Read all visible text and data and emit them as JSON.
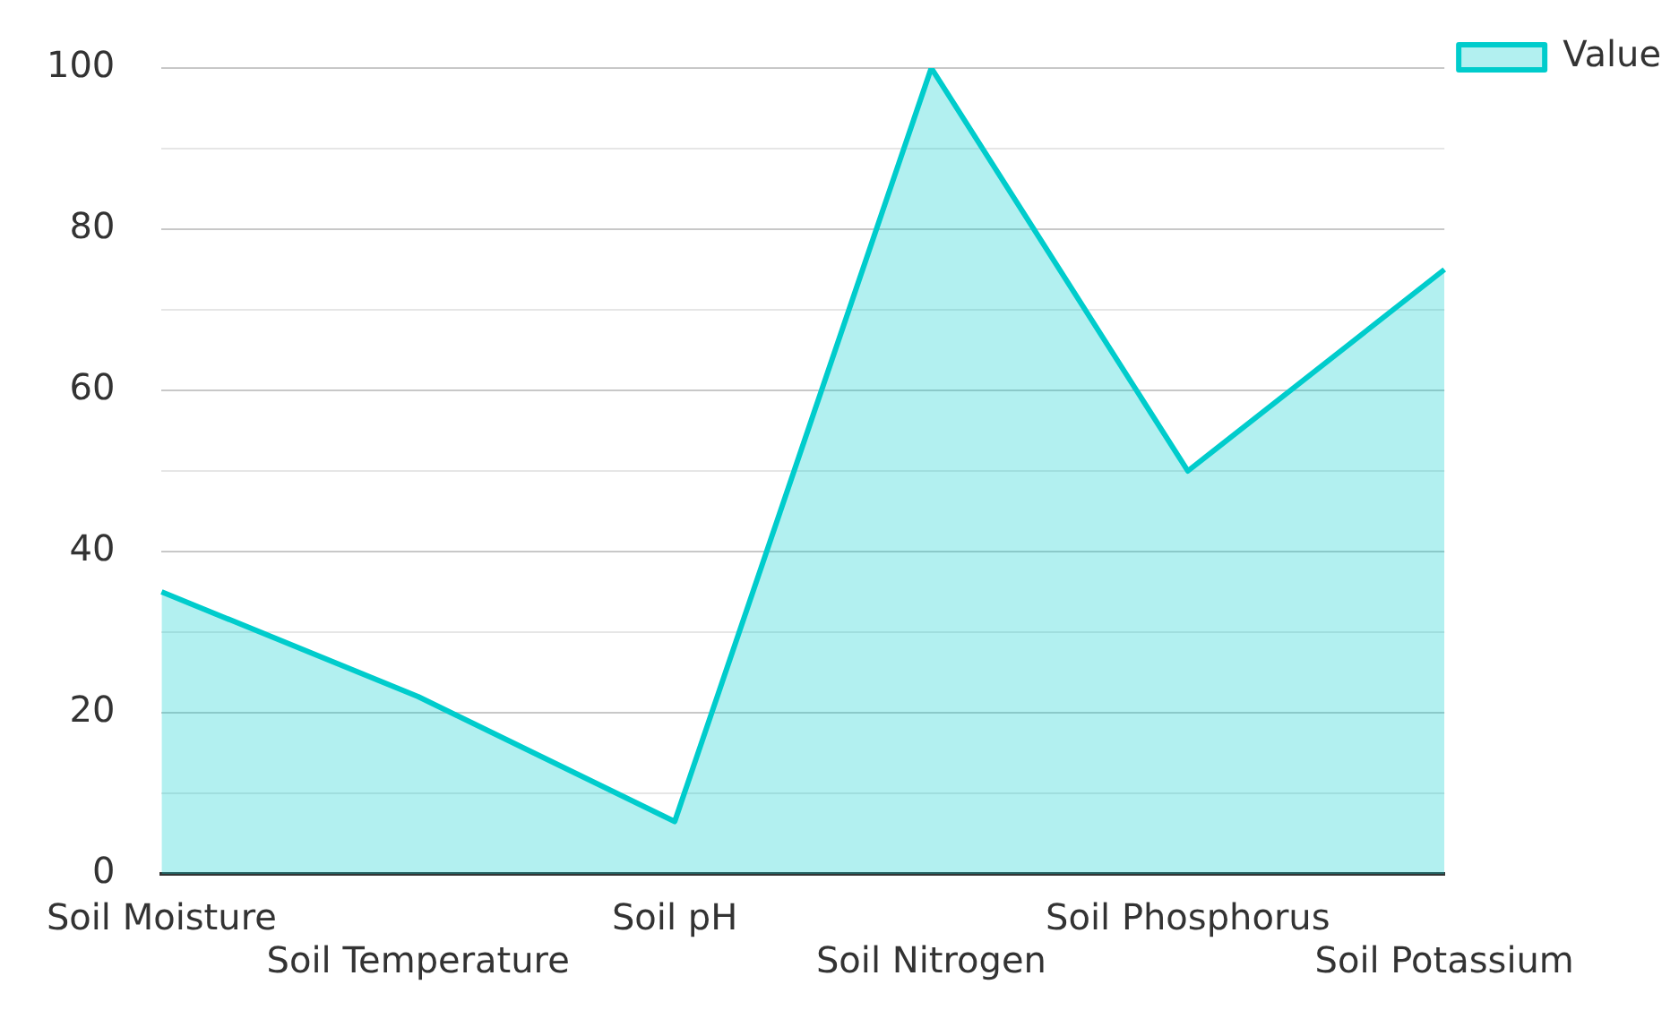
{
  "chart_data": {
    "type": "area",
    "categories": [
      "Soil Moisture",
      "Soil Temperature",
      "Soil pH",
      "Soil Nitrogen",
      "Soil Phosphorus",
      "Soil Potassium"
    ],
    "series": [
      {
        "name": "Value",
        "color": "#00cccc",
        "values": [
          35,
          22,
          6.5,
          100,
          50,
          75
        ]
      }
    ],
    "ylim": [
      0,
      100
    ],
    "yticks": [
      0,
      {
        "value": 10,
        "label": null
      },
      20,
      {
        "value": 30,
        "label": null
      },
      40,
      {
        "value": 50,
        "label": null
      },
      60,
      {
        "value": 70,
        "label": null
      },
      80,
      {
        "value": 90,
        "label": null
      },
      100
    ],
    "grid": "y",
    "legend": "top right"
  }
}
